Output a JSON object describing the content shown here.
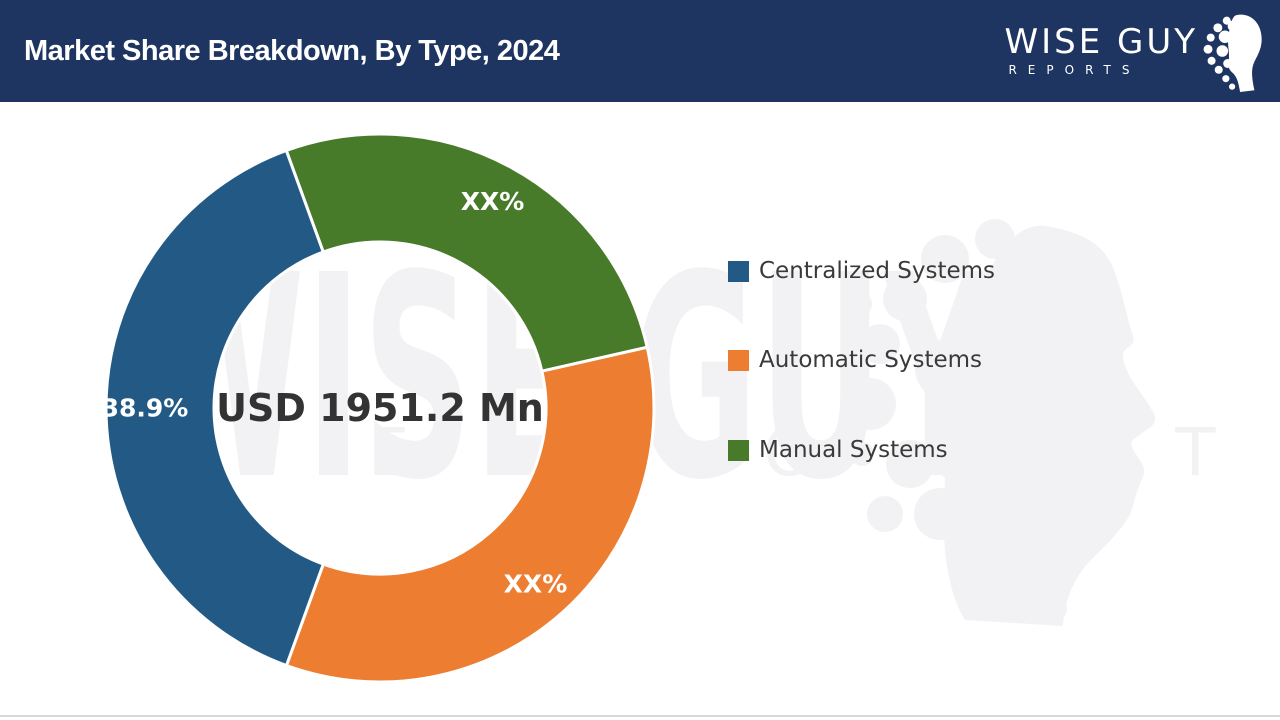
{
  "header": {
    "title": "Market Share Breakdown, By Type, 2024",
    "logo": {
      "line1": "WISE GUY",
      "line2": "REPORTS"
    }
  },
  "watermark": {
    "line1": "WISE GUY",
    "line2": "REPORTS"
  },
  "chart_data": {
    "type": "pie",
    "subtype": "donut",
    "title": "Market Share Breakdown, By Type, 2024",
    "center_label": "USD 1951.2 Mn",
    "rotation_start_deg": -20,
    "legend_position": "right",
    "segments": [
      {
        "name": "Manual Systems",
        "label": "XX%",
        "value_pct": 27.0,
        "color": "#477b2a"
      },
      {
        "name": "Automatic Systems",
        "label": "XX%",
        "value_pct": 34.1,
        "color": "#ed7d31"
      },
      {
        "name": "Centralized Systems",
        "label": "38.9%",
        "value_pct": 38.9,
        "color": "#235a85"
      }
    ]
  },
  "legend": {
    "items": [
      {
        "label": "Centralized Systems",
        "color": "#235a85"
      },
      {
        "label": "Automatic Systems",
        "color": "#ed7d31"
      },
      {
        "label": "Manual Systems",
        "color": "#477b2a"
      }
    ]
  },
  "colors": {
    "header_bg": "#1f3561",
    "center_text": "#333333",
    "legend_text": "#3a3a3a",
    "watermark": "#f2f2f4",
    "bottom_rule": "#d9d9d9"
  }
}
